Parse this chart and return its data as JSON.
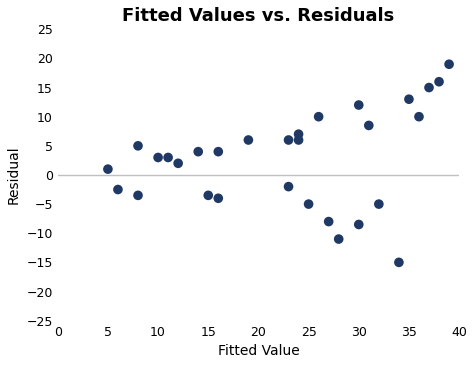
{
  "title": "Fitted Values vs. Residuals",
  "xlabel": "Fitted Value",
  "ylabel": "Residual",
  "xlim": [
    0,
    40
  ],
  "ylim": [
    -25,
    25
  ],
  "xticks": [
    0,
    5,
    10,
    15,
    20,
    25,
    30,
    35,
    40
  ],
  "yticks": [
    -25,
    -20,
    -15,
    -10,
    -5,
    0,
    5,
    10,
    15,
    20,
    25
  ],
  "dot_color": "#1F3864",
  "background_color": "#ffffff",
  "x": [
    5,
    6,
    8,
    8,
    10,
    11,
    12,
    14,
    15,
    16,
    16,
    19,
    23,
    23,
    24,
    24,
    25,
    26,
    27,
    28,
    30,
    30,
    31,
    32,
    34,
    35,
    36,
    37,
    38,
    39
  ],
  "y": [
    1,
    -2.5,
    -3.5,
    5,
    3,
    3,
    2,
    4,
    -3.5,
    -4,
    4,
    6,
    6,
    -2,
    7,
    6,
    -5,
    10,
    -8,
    -11,
    12,
    -8.5,
    8.5,
    -5,
    -15,
    13,
    10,
    15,
    16,
    19
  ],
  "hline_y": 0,
  "hline_color": "#c0c0c0",
  "title_fontsize": 13,
  "label_fontsize": 10,
  "tick_fontsize": 9,
  "marker_size": 48
}
